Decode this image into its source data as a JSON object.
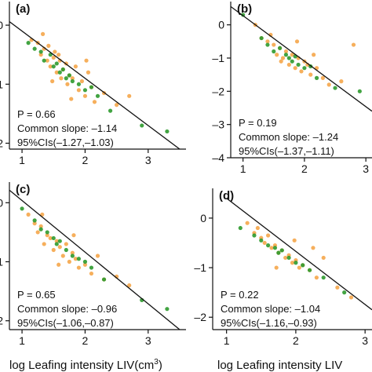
{
  "colors": {
    "orange": "#f5a64a",
    "green": "#2e9a2e",
    "line": "#111111"
  },
  "chart_data": [
    {
      "type": "scatter",
      "panel_label": "(a)",
      "xlim": [
        0.8,
        3.6
      ],
      "ylim": [
        -2.1,
        0.4
      ],
      "xticks": [
        1,
        2,
        3
      ],
      "xtick_labels": [
        "1",
        "2",
        "3"
      ],
      "yticks": [
        0,
        -1,
        -2
      ],
      "ytick_labels": [
        "0",
        "1",
        "2"
      ],
      "fit_line": {
        "x": [
          0.5,
          3.5
        ],
        "y": [
          0.3,
          -2.1
        ]
      },
      "stats": [
        "P = 0.66",
        "Common slope: –1.14",
        "95%CIs(–1.27,–1.03)"
      ],
      "series": [
        {
          "color": "orange",
          "x": [
            1.15,
            1.25,
            1.3,
            1.35,
            1.4,
            1.42,
            1.45,
            1.5,
            1.52,
            1.55,
            1.6,
            1.62,
            1.65,
            1.7,
            1.72,
            1.75,
            1.8,
            1.85,
            1.9,
            1.95,
            2.0,
            2.05,
            2.1,
            2.15,
            2.3,
            2.5,
            2.7,
            1.33,
            1.48,
            1.58,
            1.78,
            2.02
          ],
          "y": [
            -0.25,
            -0.3,
            -0.5,
            -0.4,
            -0.6,
            -0.35,
            -0.7,
            -0.55,
            -0.45,
            -0.8,
            -0.6,
            -0.9,
            -0.75,
            -0.65,
            -1.0,
            -0.85,
            -0.9,
            -0.7,
            -1.1,
            -0.95,
            -1.2,
            -0.8,
            -1.05,
            -1.3,
            -1.15,
            -1.35,
            -1.2,
            -0.15,
            -0.95,
            -0.5,
            -1.25,
            -0.6
          ]
        },
        {
          "color": "green",
          "x": [
            0.7,
            1.1,
            1.2,
            1.3,
            1.35,
            1.45,
            1.5,
            1.55,
            1.6,
            1.65,
            1.7,
            1.75,
            1.8,
            1.9,
            2.0,
            2.1,
            2.2,
            2.4,
            2.9,
            3.3
          ],
          "y": [
            0.1,
            -0.3,
            -0.4,
            -0.45,
            -0.6,
            -0.5,
            -0.7,
            -0.65,
            -0.8,
            -0.75,
            -0.9,
            -0.85,
            -0.95,
            -1.0,
            -1.1,
            -1.05,
            -1.2,
            -1.45,
            -1.7,
            -1.8
          ]
        }
      ]
    },
    {
      "type": "scatter",
      "panel_label": "(b)",
      "xlim": [
        0.8,
        3.1
      ],
      "ylim": [
        -4.0,
        0.7
      ],
      "xticks": [
        1,
        2,
        3
      ],
      "xtick_labels": [
        "1",
        "2",
        "3"
      ],
      "yticks": [
        0,
        -1,
        -2,
        -3,
        -4
      ],
      "ytick_labels": [
        "0",
        "–1",
        "–2",
        "–3",
        "–4"
      ],
      "fit_line": {
        "x": [
          0.8,
          3.1
        ],
        "y": [
          0.55,
          -2.6
        ]
      },
      "stats": [
        "P = 0.19",
        "Common slope: –1.24",
        "95%CIs(–1.37,–1.11)"
      ],
      "series": [
        {
          "color": "orange",
          "x": [
            1.2,
            1.3,
            1.4,
            1.5,
            1.55,
            1.6,
            1.65,
            1.7,
            1.75,
            1.8,
            1.85,
            1.9,
            1.95,
            2.0,
            2.05,
            2.1,
            2.2,
            2.3,
            2.4,
            2.6,
            2.8,
            1.45,
            1.62,
            1.88,
            2.15
          ],
          "y": [
            0.0,
            -0.4,
            -0.5,
            -0.6,
            -0.9,
            -0.7,
            -1.0,
            -0.8,
            -1.2,
            -0.9,
            -1.3,
            -1.0,
            -1.4,
            -1.1,
            -1.2,
            -1.5,
            -1.3,
            -1.6,
            -1.8,
            -1.7,
            -0.6,
            -0.3,
            -1.1,
            -0.5,
            -0.9
          ]
        },
        {
          "color": "green",
          "x": [
            1.0,
            1.3,
            1.4,
            1.5,
            1.6,
            1.7,
            1.75,
            1.8,
            1.85,
            1.9,
            2.0,
            2.1,
            2.2,
            2.5,
            2.9
          ],
          "y": [
            0.3,
            -0.4,
            -0.6,
            -0.8,
            -0.7,
            -0.9,
            -1.0,
            -1.1,
            -0.95,
            -1.2,
            -1.3,
            -1.25,
            -1.6,
            -1.9,
            -2.0
          ]
        }
      ]
    },
    {
      "type": "scatter",
      "panel_label": "(c)",
      "xlim": [
        0.8,
        3.6
      ],
      "ylim": [
        -2.15,
        0.35
      ],
      "xticks": [
        1,
        2,
        3
      ],
      "xtick_labels": [
        "1",
        "2",
        "3"
      ],
      "yticks": [
        0,
        -1,
        -2
      ],
      "ytick_labels": [
        "0",
        "1",
        "2"
      ],
      "fit_line": {
        "x": [
          0.7,
          3.5
        ],
        "y": [
          0.3,
          -2.15
        ]
      },
      "stats": [
        "P = 0.65",
        "Common slope: –0.96",
        "95%CIs(–1.06,–0.87)"
      ],
      "series": [
        {
          "color": "orange",
          "x": [
            1.1,
            1.2,
            1.25,
            1.3,
            1.35,
            1.4,
            1.45,
            1.5,
            1.55,
            1.6,
            1.65,
            1.7,
            1.75,
            1.8,
            1.85,
            1.9,
            2.0,
            2.1,
            2.2,
            2.3,
            2.5,
            2.7,
            1.32,
            1.58,
            1.82
          ],
          "y": [
            -0.2,
            -0.35,
            -0.5,
            -0.4,
            -0.7,
            -0.55,
            -0.6,
            -0.8,
            -0.65,
            -0.75,
            -0.9,
            -0.7,
            -1.0,
            -0.85,
            -0.95,
            -1.1,
            -1.05,
            -1.2,
            -0.9,
            -1.3,
            -1.25,
            -1.4,
            -0.2,
            -1.05,
            -0.55
          ]
        },
        {
          "color": "green",
          "x": [
            0.6,
            1.0,
            1.2,
            1.3,
            1.4,
            1.5,
            1.55,
            1.6,
            1.7,
            1.8,
            1.9,
            2.0,
            2.1,
            2.3,
            2.9,
            3.3
          ],
          "y": [
            0.25,
            -0.1,
            -0.3,
            -0.45,
            -0.5,
            -0.6,
            -0.7,
            -0.65,
            -0.8,
            -0.9,
            -0.95,
            -1.0,
            -1.1,
            -1.3,
            -1.65,
            -1.8
          ]
        }
      ]
    },
    {
      "type": "scatter",
      "panel_label": "(d)",
      "xlim": [
        0.8,
        3.1
      ],
      "ylim": [
        -2.25,
        0.6
      ],
      "xticks": [
        1,
        2,
        3
      ],
      "xtick_labels": [
        "1",
        "2",
        "3"
      ],
      "yticks": [
        0,
        -1,
        -2
      ],
      "ytick_labels": [
        "0",
        "–1",
        "–2"
      ],
      "fit_line": {
        "x": [
          1.0,
          3.1
        ],
        "y": [
          0.4,
          -1.85
        ]
      },
      "stats": [
        "P = 0.22",
        "Common slope: –1.04",
        "95%CIs(–1.16,–0.93)"
      ],
      "series": [
        {
          "color": "orange",
          "x": [
            1.3,
            1.4,
            1.5,
            1.55,
            1.6,
            1.65,
            1.7,
            1.75,
            1.8,
            1.85,
            1.9,
            1.95,
            2.0,
            2.05,
            2.1,
            2.2,
            2.3,
            2.4,
            2.6,
            2.8,
            1.45,
            1.72,
            1.98,
            2.25
          ],
          "y": [
            -0.1,
            -0.3,
            -0.4,
            -0.5,
            -0.35,
            -0.6,
            -0.55,
            -0.7,
            -0.65,
            -0.8,
            -0.75,
            -0.9,
            -0.85,
            -1.0,
            -0.95,
            -1.05,
            -1.2,
            -0.8,
            -1.4,
            -1.6,
            -0.2,
            -1.0,
            -0.45,
            -0.6
          ]
        },
        {
          "color": "green",
          "x": [
            0.7,
            1.2,
            1.4,
            1.5,
            1.6,
            1.7,
            1.75,
            1.8,
            1.9,
            2.0,
            2.1,
            2.2,
            2.4,
            2.7
          ],
          "y": [
            0.3,
            -0.2,
            -0.35,
            -0.45,
            -0.55,
            -0.6,
            -0.7,
            -0.65,
            -0.8,
            -0.9,
            -0.95,
            -1.05,
            -1.2,
            -1.5
          ]
        }
      ]
    }
  ],
  "xlabel_left": "log Leafing intensity LIV(cm",
  "xlabel_left_sup": "3",
  "xlabel_left_close": ")",
  "xlabel_right": "log Leafing intensity LIV"
}
